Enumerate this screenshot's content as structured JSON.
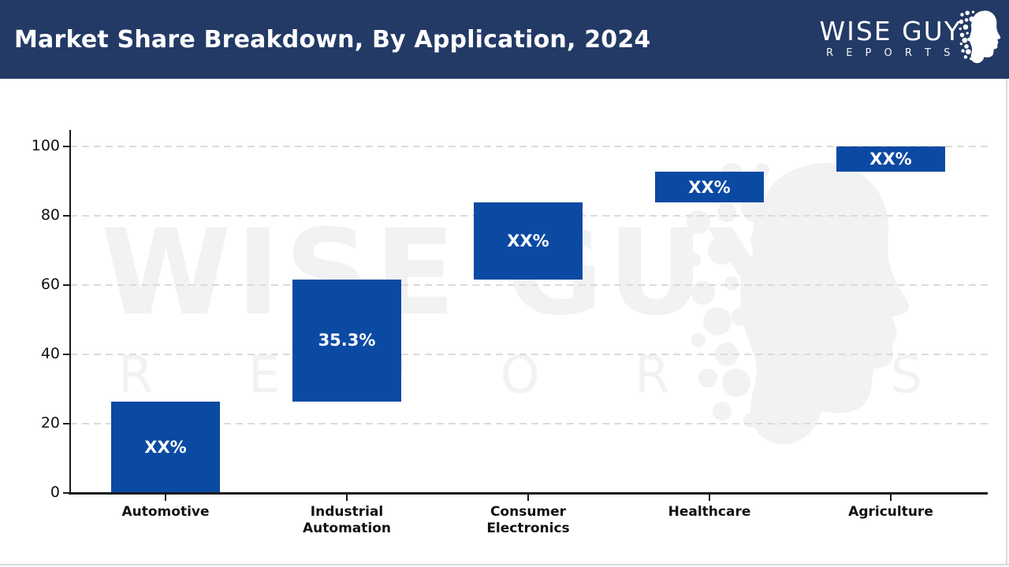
{
  "header": {
    "title": "Market Share Breakdown, By Application, 2024",
    "logo": {
      "line1": "WISE GUY",
      "line2": "R E P O R T S"
    },
    "bg_color": "#233A66"
  },
  "watermark": {
    "line1": "WISE GUY",
    "line2": "R E P O R T S"
  },
  "chart_data": {
    "type": "bar",
    "subtype": "waterfall-floating-bars",
    "title": "Market Share Breakdown, By Application, 2024",
    "categories": [
      "Automotive",
      "Industrial\nAutomation",
      "Consumer\nElectronics",
      "Healthcare",
      "Agriculture"
    ],
    "segments": [
      {
        "category": "Automotive",
        "start": 0,
        "end": 26.4,
        "label": "XX%"
      },
      {
        "category": "Industrial Automation",
        "start": 26.4,
        "end": 61.7,
        "label": "35.3%"
      },
      {
        "category": "Consumer Electronics",
        "start": 61.7,
        "end": 83.8,
        "label": "XX%"
      },
      {
        "category": "Healthcare",
        "start": 83.8,
        "end": 92.7,
        "label": "XX%"
      },
      {
        "category": "Agriculture",
        "start": 92.7,
        "end": 100,
        "label": "XX%"
      }
    ],
    "yticks": [
      0,
      20,
      40,
      60,
      80,
      100
    ],
    "ylim": [
      0,
      100
    ],
    "xlabel": "",
    "ylabel": "",
    "bar_color": "#0B4AA2",
    "grid": "horizontal-dashed",
    "gridline_color": "#DBDBDB",
    "legend": "none"
  }
}
